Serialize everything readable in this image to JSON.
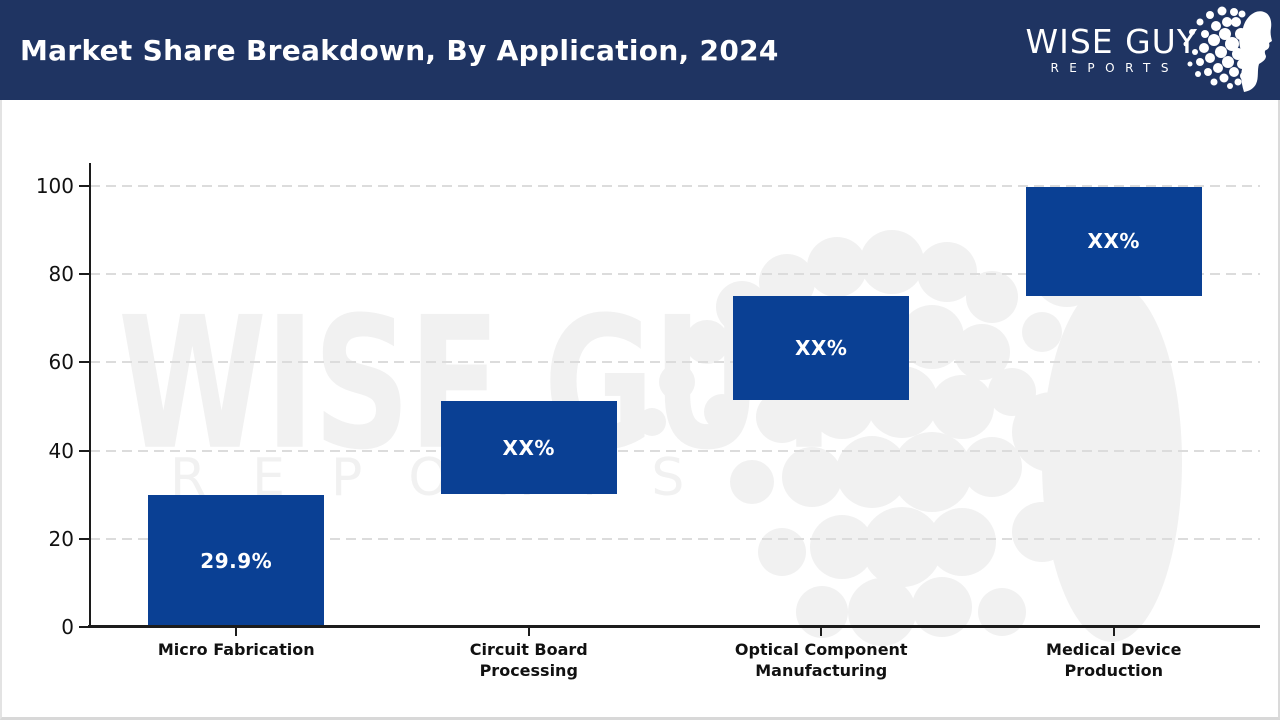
{
  "header": {
    "title": "Market Share Breakdown, By Application, 2024",
    "background_color": "#1f3462",
    "logo": {
      "wordmark": "WISE GUY",
      "subtext": "REPORTS"
    }
  },
  "watermark": {
    "wordmark": "WISE GUY",
    "subtext": "REPORTS"
  },
  "chart_data": {
    "type": "bar",
    "variant": "stacked-waterfall",
    "title": "Market Share Breakdown, By Application, 2024",
    "categories": [
      "Micro Fabrication",
      "Circuit Board Processing",
      "Optical Component Manufacturing",
      "Medical Device Production"
    ],
    "bars": [
      {
        "category": "Micro Fabrication",
        "category_lines": [
          "Micro Fabrication"
        ],
        "start": 0,
        "end": 29.9,
        "label": "29.9%"
      },
      {
        "category": "Circuit Board Processing",
        "category_lines": [
          "Circuit Board",
          "Processing"
        ],
        "start": 30.2,
        "end": 51.2,
        "label": "XX%"
      },
      {
        "category": "Optical Component Manufacturing",
        "category_lines": [
          "Optical Component",
          "Manufacturing"
        ],
        "start": 51.5,
        "end": 75.1,
        "label": "XX%"
      },
      {
        "category": "Medical Device Production",
        "category_lines": [
          "Medical Device",
          "Production"
        ],
        "start": 75.1,
        "end": 99.8,
        "label": "XX%"
      }
    ],
    "xlabel": "",
    "ylabel": "",
    "ylim": [
      0,
      105.2
    ],
    "yticks": [
      0,
      20,
      40,
      60,
      80,
      100
    ],
    "grid": "horizontal-dashed",
    "legend": "none",
    "bar_color": "#0a4094",
    "bar_label_color": "#ffffff",
    "axis_color": "#1c1c1c",
    "gridline_color": "#dcdcdc",
    "watermark_color": "#f1f1f1"
  }
}
